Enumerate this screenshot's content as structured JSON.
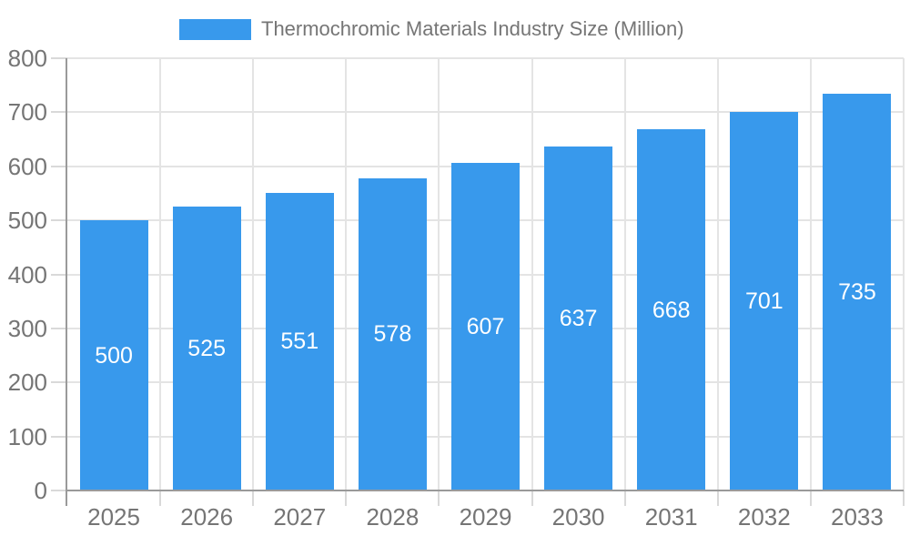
{
  "chart_data": {
    "type": "bar",
    "title": "Thermochromic Materials Industry Size (Million)",
    "categories": [
      "2025",
      "2026",
      "2027",
      "2028",
      "2029",
      "2030",
      "2031",
      "2032",
      "2033"
    ],
    "values": [
      500,
      525,
      551,
      578,
      607,
      637,
      668,
      701,
      735
    ],
    "xlabel": "",
    "ylabel": "",
    "ylim": [
      0,
      800
    ],
    "ytick_step": 100,
    "yticks": [
      0,
      100,
      200,
      300,
      400,
      500,
      600,
      700,
      800
    ],
    "grid": true,
    "legend_position": "top",
    "value_labels": "inside-center"
  },
  "colors": {
    "bar": "#3899EC",
    "grid": "#e4e4e4",
    "axis": "#9a9a9a",
    "boundary_tick": "#d9d9d9",
    "tick_label": "#757575",
    "legend_label": "#757575",
    "value_label": "#ffffff",
    "background": "#ffffff"
  }
}
